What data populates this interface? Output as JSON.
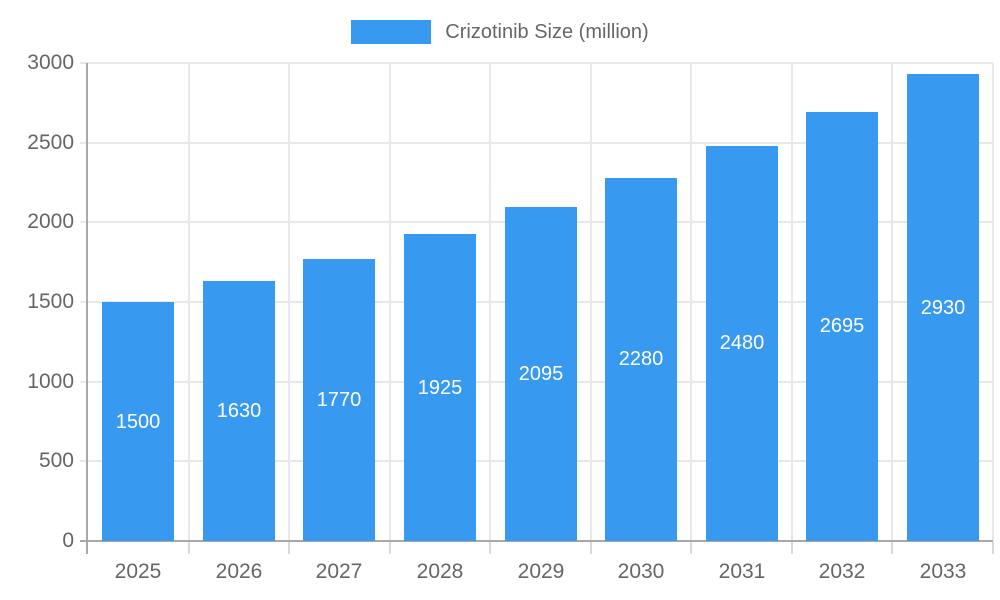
{
  "chart_data": {
    "type": "bar",
    "title": "",
    "legend": "Crizotinib Size (million)",
    "categories": [
      "2025",
      "2026",
      "2027",
      "2028",
      "2029",
      "2030",
      "2031",
      "2032",
      "2033"
    ],
    "values": [
      1500,
      1630,
      1770,
      1925,
      2095,
      2280,
      2480,
      2695,
      2930
    ],
    "series": [
      {
        "name": "Crizotinib Size (million)",
        "values": [
          1500,
          1630,
          1770,
          1925,
          2095,
          2280,
          2480,
          2695,
          2930
        ]
      }
    ],
    "xlabel": "",
    "ylabel": "",
    "ylim": [
      0,
      3000
    ],
    "yticks": [
      0,
      500,
      1000,
      1500,
      2000,
      2500,
      3000
    ],
    "grid": true,
    "legend_position": "top-center",
    "value_labels": "inside-center",
    "colors": {
      "bar": "#3899f0",
      "axis": "#a8a8a8",
      "grid": "#e8e8e8",
      "tick": "#d9d9d9",
      "text": "#666666",
      "value_label": "#ffffff",
      "background": "#ffffff"
    }
  }
}
